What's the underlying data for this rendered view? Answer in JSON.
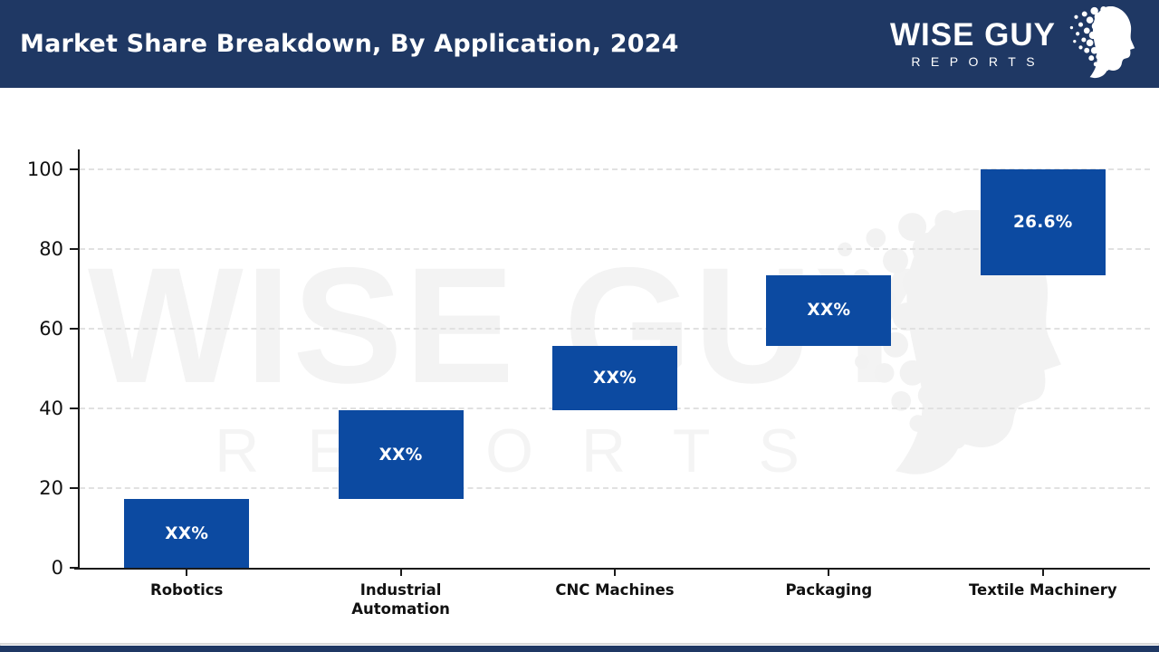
{
  "header": {
    "title": "Market Share Breakdown, By Application, 2024",
    "logo": {
      "brand": "WISE GUY",
      "sub": "REPORTS"
    }
  },
  "watermark": {
    "line1": "WISE GUY",
    "line2": "REPORTS"
  },
  "colors": {
    "header_bg": "#1f3864",
    "footer_bg": "#1f3864",
    "bar": "#0c4aa1",
    "bar_label": "#ffffff",
    "grid": "#e1e1e1",
    "axis": "#1a1a1a",
    "tick_label": "#111111",
    "watermark": "#f3f3f3"
  },
  "chart_data": {
    "type": "bar",
    "subtype": "waterfall",
    "title": "Market Share Breakdown, By Application, 2024",
    "categories": [
      "Robotics",
      "Industrial Automation",
      "CNC Machines",
      "Packaging",
      "Textile Machinery"
    ],
    "series": [
      {
        "name": "Market Share (%)",
        "values": [
          17.2,
          22.4,
          16.1,
          17.7,
          26.6
        ]
      }
    ],
    "segments": [
      {
        "category": "Robotics",
        "start": 0,
        "end": 17.2,
        "label": "XX%"
      },
      {
        "category": "Industrial Automation",
        "start": 17.2,
        "end": 39.6,
        "label": "XX%"
      },
      {
        "category": "CNC Machines",
        "start": 39.6,
        "end": 55.7,
        "label": "XX%"
      },
      {
        "category": "Packaging",
        "start": 55.7,
        "end": 73.4,
        "label": "XX%"
      },
      {
        "category": "Textile Machinery",
        "start": 73.4,
        "end": 100,
        "label": "26.6%"
      }
    ],
    "bar_labels": [
      "XX%",
      "XX%",
      "XX%",
      "XX%",
      "26.6%"
    ],
    "xlabel": "",
    "ylabel": "",
    "ylim": [
      0,
      100
    ],
    "yticks": [
      0,
      20,
      40,
      60,
      80,
      100
    ],
    "grid": "horizontal-dashed",
    "legend": "none"
  }
}
